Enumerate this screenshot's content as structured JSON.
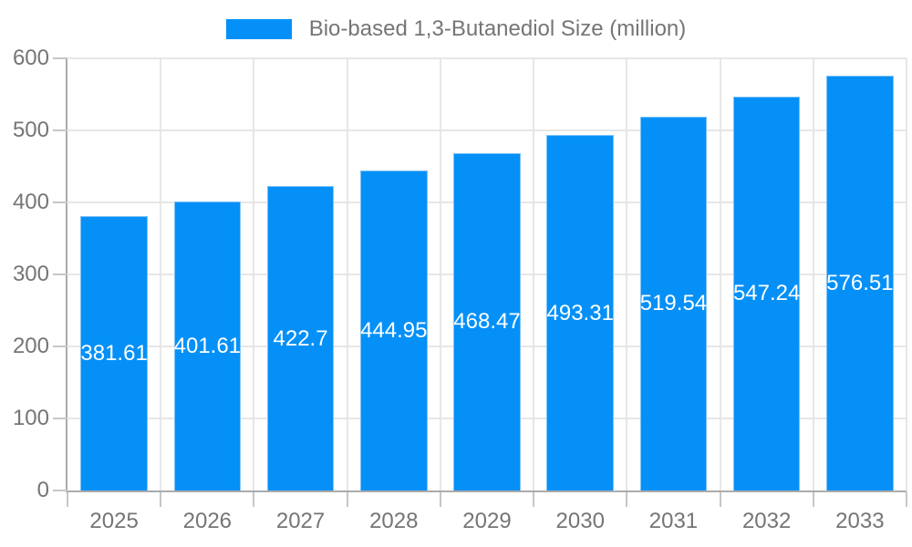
{
  "legend": {
    "label": "Bio-based 1,3-Butanediol Size (million)"
  },
  "chart_data": {
    "type": "bar",
    "title": "Bio-based 1,3-Butanediol Size (million)",
    "categories": [
      "2025",
      "2026",
      "2027",
      "2028",
      "2029",
      "2030",
      "2031",
      "2032",
      "2033"
    ],
    "values": [
      381.61,
      401.61,
      422.7,
      444.95,
      468.47,
      493.31,
      519.54,
      547.24,
      576.51
    ],
    "value_labels": [
      "381.61",
      "401.61",
      "422.7",
      "444.95",
      "468.47",
      "493.31",
      "519.54",
      "547.24",
      "576.51"
    ],
    "xlabel": "",
    "ylabel": "",
    "ylim": [
      0,
      600
    ],
    "yticks": [
      0,
      100,
      200,
      300,
      400,
      500,
      600
    ],
    "grid": true,
    "legend_position": "top-center",
    "colors": {
      "bar_fill": "#0590F8",
      "bar_border": "#7FC3F6",
      "gridline": "#E6E6E6",
      "axis_line": "#ABABAB",
      "tick": "#C6C6C6",
      "axis_text": "#757575",
      "value_label_text": "#FFFFFF",
      "background": "#FFFFFF"
    }
  }
}
